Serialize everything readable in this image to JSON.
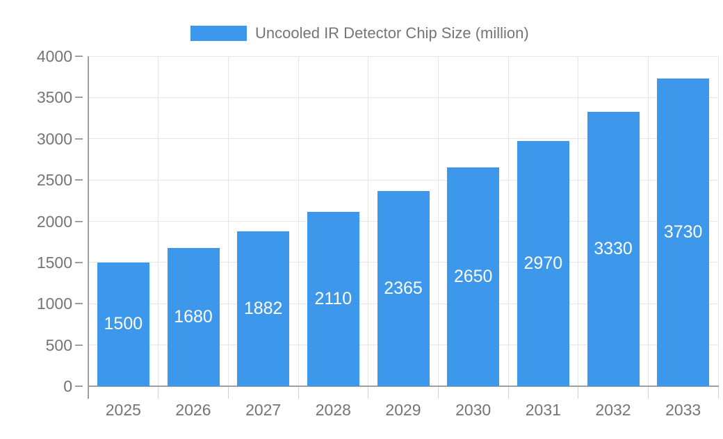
{
  "chart_data": {
    "type": "bar",
    "title": "Uncooled IR Detector Chip Size (million)",
    "categories": [
      "2025",
      "2026",
      "2027",
      "2028",
      "2029",
      "2030",
      "2031",
      "2032",
      "2033"
    ],
    "values": [
      1500,
      1680,
      1882,
      2110,
      2365,
      2650,
      2970,
      3330,
      3730
    ],
    "value_labels": [
      "1500",
      "1680",
      "1882",
      "2110",
      "2365",
      "2650",
      "2970",
      "3330",
      "3730"
    ],
    "xlabel": "",
    "ylabel": "",
    "ylim": [
      0,
      4000
    ],
    "y_tick_step": 500,
    "y_tick_labels": [
      "0",
      "500",
      "1000",
      "1500",
      "2000",
      "2500",
      "3000",
      "3500",
      "4000"
    ],
    "grid": true,
    "legend_position": "top",
    "colors": {
      "bar": "#3D98EC",
      "grid": "#E6E6E6",
      "axis": "#9E9E9E",
      "x_tick": "#D2D2D2",
      "text": "#757575",
      "bar_label": "#FFFFFF"
    }
  }
}
